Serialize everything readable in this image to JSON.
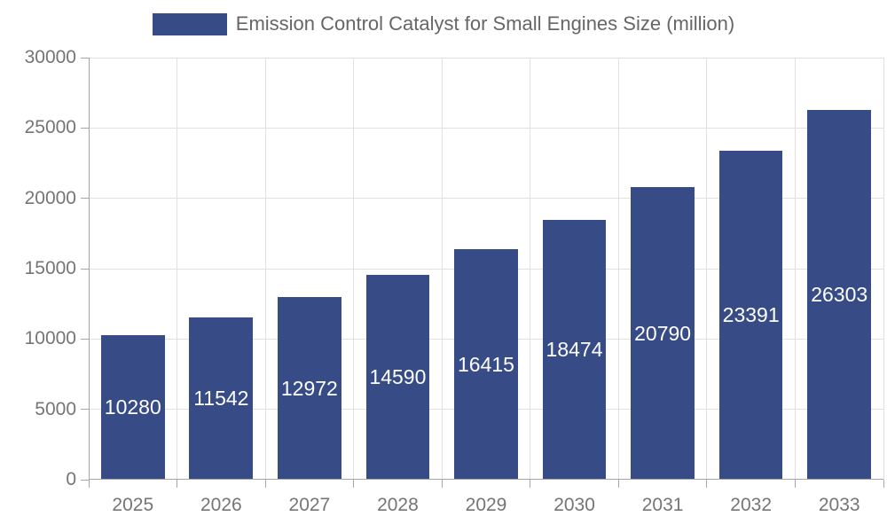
{
  "chart_data": {
    "type": "bar",
    "title": "Emission Control Catalyst for Small Engines Size (million)",
    "legend_position": "top",
    "categories": [
      "2025",
      "2026",
      "2027",
      "2028",
      "2029",
      "2030",
      "2031",
      "2032",
      "2033"
    ],
    "values": [
      10280,
      11542,
      12972,
      14590,
      16415,
      18474,
      20790,
      23391,
      26303
    ],
    "value_labels_visible": true,
    "xlabel": "",
    "ylabel": "",
    "ylim": [
      0,
      30000
    ],
    "yticks": [
      0,
      5000,
      10000,
      15000,
      20000,
      25000,
      30000
    ],
    "grid": true,
    "bar_width_fraction": 0.72,
    "colors": {
      "bar": "#374B86",
      "value_label": "#FFFFFF",
      "axis_text": "#757575",
      "legend_text": "#666666",
      "grid_line": "#E0E0E0",
      "axis_line": "#A6A6A6",
      "background": "#FFFFFF"
    }
  }
}
